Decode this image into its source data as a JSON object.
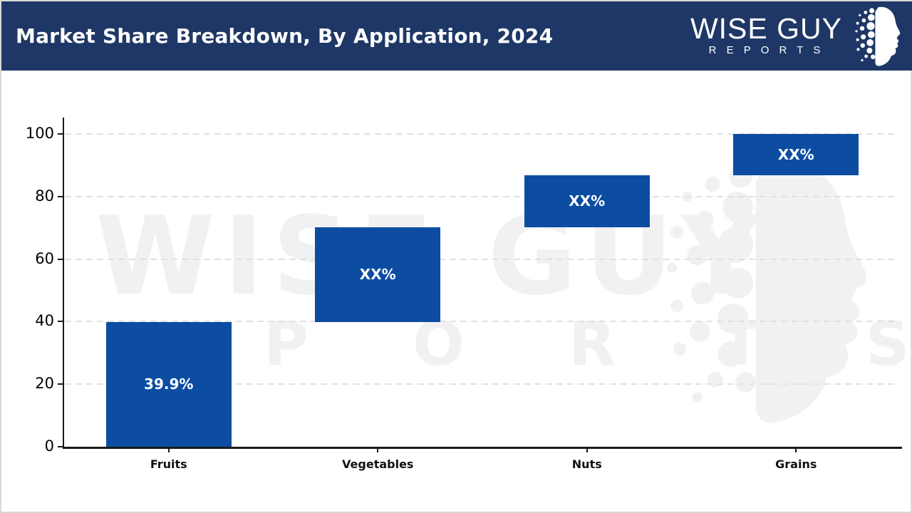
{
  "page": {
    "background": "#FFFFFF",
    "border_color": "#D9D9D9"
  },
  "header": {
    "background": "#1E3766",
    "title": "Market Share Breakdown, By Application, 2024",
    "logo": {
      "line1": "WISE GUY",
      "line2": "R E P O R T S"
    }
  },
  "watermark": {
    "line1": "WISE GUY",
    "line2": "P O R T S"
  },
  "chart_data": {
    "type": "bar",
    "subtype": "floating-waterfall",
    "title": "Market Share Breakdown, By Application, 2024",
    "categories": [
      "Fruits",
      "Vegetables",
      "Nuts",
      "Grains"
    ],
    "segments": [
      {
        "category": "Fruits",
        "start": 0,
        "end": 39.9,
        "label": "39.9%"
      },
      {
        "category": "Vegetables",
        "start": 39.9,
        "end": 70.2,
        "label": "XX%"
      },
      {
        "category": "Nuts",
        "start": 70.2,
        "end": 86.9,
        "label": "XX%"
      },
      {
        "category": "Grains",
        "start": 86.9,
        "end": 100,
        "label": "XX%"
      }
    ],
    "ylim": [
      0,
      105
    ],
    "yticks": [
      0,
      20,
      40,
      60,
      80,
      100
    ],
    "xlabel": "",
    "ylabel": "",
    "grid": "horizontal-dashed",
    "grid_color": "#E1E1E1",
    "bar_color": "#0C4DA2",
    "bar_label_color": "#FFFFFF",
    "axis_color": "#1A1A1A",
    "legend": "none"
  }
}
